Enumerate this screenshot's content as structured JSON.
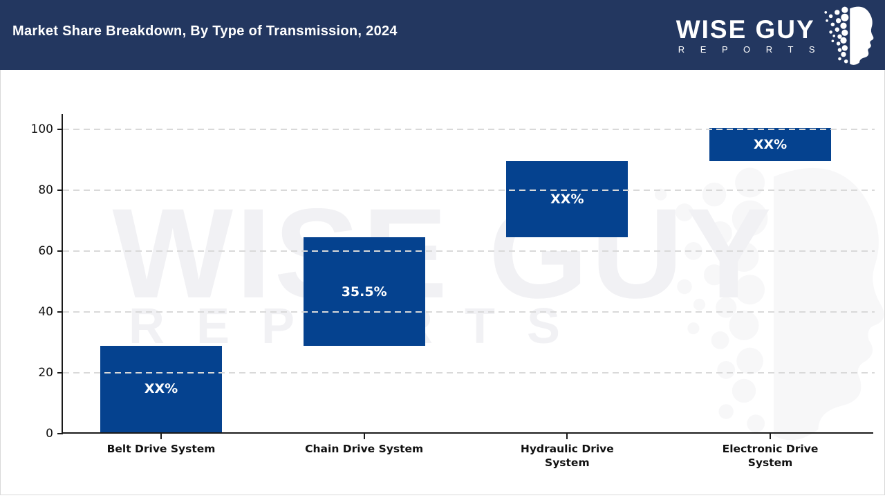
{
  "header": {
    "title": "Market Share Breakdown, By Type of Transmission, 2024",
    "logo": {
      "line1": "WISE GUY",
      "line2": "R E P O R T S"
    },
    "background_color": "#233760"
  },
  "watermark": {
    "line1": "WISE GUY",
    "line2": "REPORTS"
  },
  "chart_data": {
    "type": "bar",
    "subtype": "waterfall",
    "title": "Market Share Breakdown, By Type of Transmission, 2024",
    "categories": [
      "Belt Drive System",
      "Chain Drive System",
      "Hydraulic Drive System",
      "Electronic Drive System"
    ],
    "segments": [
      {
        "category": "Belt Drive System",
        "start": 0,
        "end": 28.5,
        "label": "XX%"
      },
      {
        "category": "Chain Drive System",
        "start": 28.5,
        "end": 64,
        "label": "35.5%",
        "value": 35.5
      },
      {
        "category": "Hydraulic Drive System",
        "start": 64,
        "end": 89,
        "label": "XX%"
      },
      {
        "category": "Electronic Drive System",
        "start": 89,
        "end": 100,
        "label": "XX%"
      }
    ],
    "xlabel": "",
    "ylabel": "",
    "y_ticks": [
      0,
      20,
      40,
      60,
      80,
      100
    ],
    "ylim": [
      0,
      105
    ],
    "grid": "horizontal-dashed",
    "legend": "none",
    "bar_color": "#05428F",
    "axis_color": "#1a1a1a",
    "grid_color": "#d9d9d9"
  }
}
